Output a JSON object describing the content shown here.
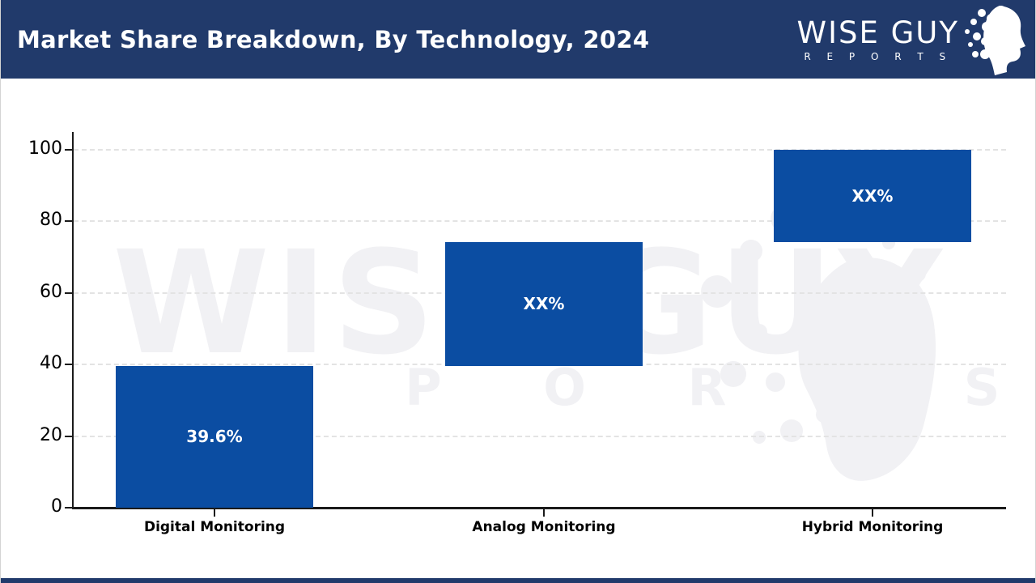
{
  "header": {
    "title": "Market Share Breakdown, By Technology, 2024",
    "logo": {
      "line1": "WISE GUY",
      "line2": "R E P O R T S"
    }
  },
  "watermark": {
    "line1": "WISE GUY",
    "line2": "R E P O R T S"
  },
  "icons": {
    "logo_face": "dot-matrix-head-profile",
    "watermark_face": "dot-matrix-head-profile"
  },
  "colors": {
    "header_bg": "#213a6b",
    "footer_bg": "#213a6b",
    "bar": "#0b4da2",
    "bar_label": "#ffffff",
    "gridline": "#e3e3e3",
    "axis": "#1a1a1a",
    "watermark": "#f1f1f4",
    "background": "#ffffff"
  },
  "chart_data": {
    "type": "bar",
    "subtype": "waterfall",
    "title": "Market Share Breakdown, By Technology, 2024",
    "xlabel": "",
    "ylabel": "",
    "categories": [
      "Digital Monitoring",
      "Analog Monitoring",
      "Hybrid Monitoring"
    ],
    "segments": [
      {
        "category": "Digital Monitoring",
        "start": 0,
        "end": 39.6,
        "label": "39.6%"
      },
      {
        "category": "Analog Monitoring",
        "start": 39.6,
        "end": 74.2,
        "label": "XX%"
      },
      {
        "category": "Hybrid Monitoring",
        "start": 74.2,
        "end": 100,
        "label": "XX%"
      }
    ],
    "yticks": [
      0,
      20,
      40,
      60,
      80,
      100
    ],
    "ylim": [
      0,
      105
    ],
    "grid": "dashed-horizontal",
    "legend": "none",
    "bar_color": "#0b4da2",
    "label_color": "#ffffff"
  }
}
